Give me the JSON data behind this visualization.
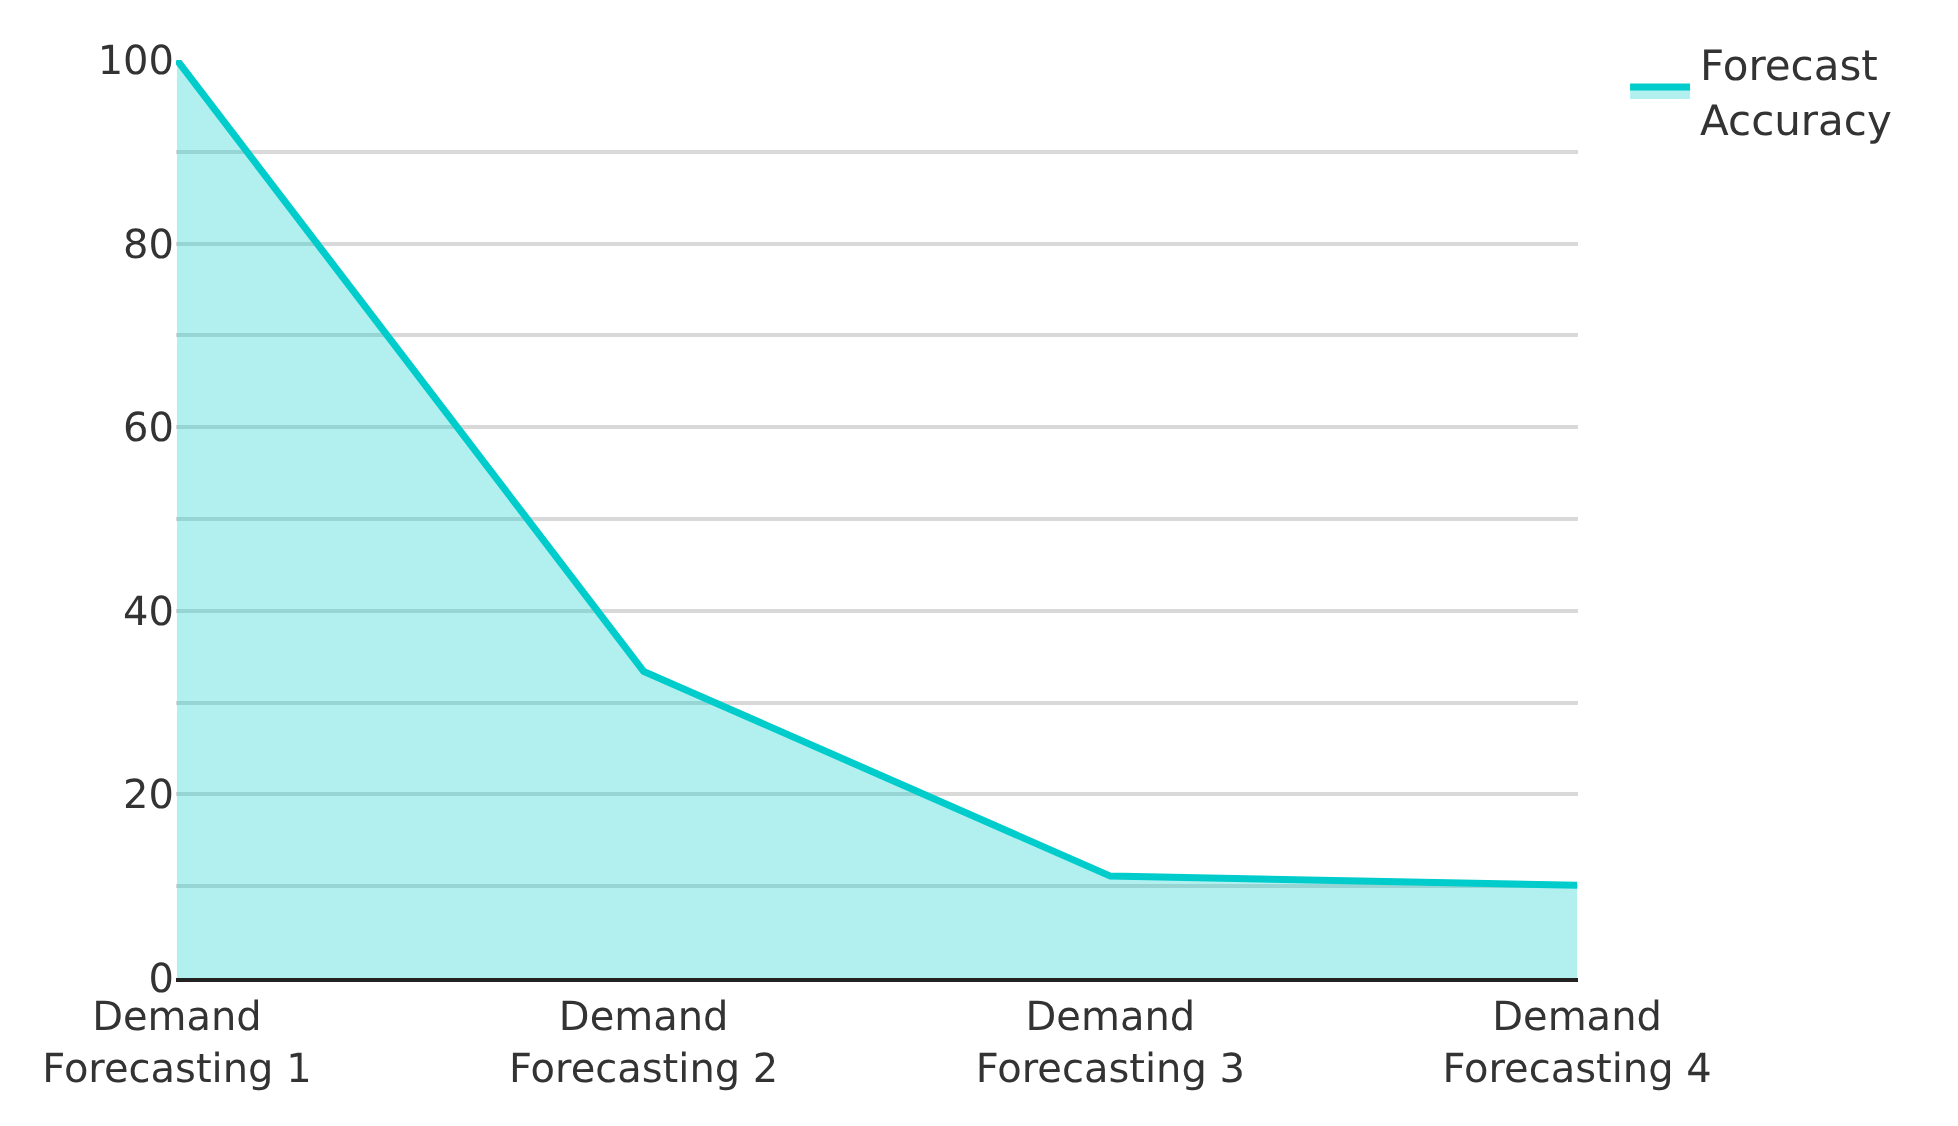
{
  "chart_data": {
    "type": "area",
    "categories": [
      "Demand Forecasting 1",
      "Demand Forecasting 2",
      "Demand Forecasting 3",
      "Demand Forecasting 4"
    ],
    "series": [
      {
        "name": "Forecast Accuracy",
        "color": "#00cccc",
        "values": [
          100,
          33.4,
          11.1,
          10.1
        ]
      }
    ],
    "ylim": [
      0,
      100
    ],
    "yticks": [
      0,
      {
        "value": 10,
        "label": null
      },
      20,
      {
        "value": 30,
        "label": null
      },
      40,
      {
        "value": 50,
        "label": null
      },
      60,
      {
        "value": 70,
        "label": null
      },
      80,
      {
        "value": 90,
        "label": null
      },
      100
    ],
    "grid": "y",
    "legend": "top right"
  }
}
